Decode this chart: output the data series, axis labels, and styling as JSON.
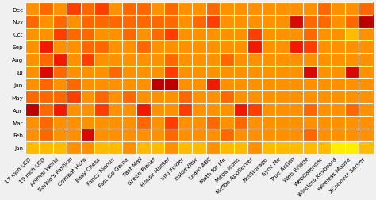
{
  "rows": [
    "Dec",
    "Nov",
    "Oct",
    "Sep",
    "Aug",
    "Jul",
    "Jun",
    "May",
    "Apr",
    "Mar",
    "Feb",
    "Jan"
  ],
  "cols": [
    "17 Inch LCD",
    "19 Inch LCD",
    "Animal World",
    "Barbie's Fashion",
    "Combat Hero",
    "Easy Chess",
    "Fancy Menus",
    "Fast Go Game",
    "Fast Mail",
    "Green Planet",
    "House Hunter",
    "Info Folder",
    "InsideView",
    "Learn ABC",
    "Math for Me",
    "Mega Icons",
    "MeToo AppServer",
    "NetStorage",
    "Sync Me",
    "True Action",
    "Web Bridge",
    "WebCalendar",
    "Wireless Keyboard",
    "Wireless Mouse",
    "XConnect Server"
  ],
  "matrix": [
    [
      5,
      6,
      5,
      7,
      6,
      7,
      5,
      6,
      6,
      5,
      6,
      5,
      5,
      6,
      5,
      5,
      5,
      5,
      5,
      5,
      5,
      6,
      5,
      5,
      6
    ],
    [
      6,
      5,
      6,
      5,
      6,
      6,
      6,
      6,
      6,
      6,
      6,
      5,
      6,
      7,
      5,
      5,
      5,
      5,
      5,
      9,
      6,
      6,
      5,
      6,
      10
    ],
    [
      5,
      5,
      7,
      6,
      6,
      5,
      5,
      6,
      5,
      6,
      7,
      5,
      5,
      5,
      5,
      5,
      7,
      5,
      5,
      5,
      6,
      5,
      5,
      4,
      5
    ],
    [
      5,
      8,
      5,
      5,
      6,
      6,
      5,
      5,
      6,
      5,
      5,
      5,
      5,
      5,
      5,
      5,
      8,
      5,
      5,
      8,
      7,
      5,
      5,
      5,
      5
    ],
    [
      5,
      6,
      8,
      5,
      7,
      5,
      5,
      5,
      5,
      5,
      6,
      5,
      5,
      5,
      6,
      5,
      5,
      5,
      5,
      5,
      5,
      5,
      5,
      5,
      5
    ],
    [
      5,
      9,
      6,
      5,
      5,
      5,
      6,
      5,
      5,
      5,
      7,
      5,
      5,
      5,
      5,
      5,
      5,
      5,
      5,
      5,
      9,
      5,
      5,
      9,
      5
    ],
    [
      5,
      6,
      5,
      6,
      5,
      5,
      5,
      5,
      5,
      10,
      10,
      5,
      5,
      8,
      5,
      5,
      5,
      5,
      5,
      5,
      5,
      5,
      5,
      5,
      5
    ],
    [
      6,
      6,
      6,
      7,
      5,
      6,
      5,
      6,
      5,
      5,
      5,
      6,
      5,
      5,
      6,
      5,
      5,
      5,
      5,
      5,
      5,
      5,
      5,
      5,
      5
    ],
    [
      10,
      6,
      8,
      5,
      5,
      7,
      5,
      5,
      8,
      5,
      5,
      7,
      5,
      5,
      5,
      8,
      7,
      5,
      5,
      5,
      6,
      5,
      5,
      6,
      5
    ],
    [
      5,
      6,
      5,
      5,
      5,
      5,
      5,
      5,
      6,
      5,
      7,
      5,
      5,
      6,
      5,
      6,
      5,
      5,
      5,
      5,
      5,
      5,
      5,
      5,
      5
    ],
    [
      5,
      6,
      5,
      5,
      9,
      5,
      5,
      5,
      5,
      5,
      6,
      5,
      5,
      5,
      6,
      5,
      5,
      5,
      5,
      5,
      6,
      5,
      5,
      5,
      5
    ],
    [
      4,
      4,
      4,
      5,
      5,
      4,
      4,
      5,
      4,
      4,
      5,
      4,
      4,
      5,
      4,
      4,
      5,
      4,
      4,
      4,
      4,
      4,
      3,
      3,
      4
    ]
  ],
  "vmin": 3,
  "vmax": 10,
  "background": "#f0f0f0",
  "linecolor": "white",
  "linewidth": 0.8,
  "tick_fontsize": 5.2
}
